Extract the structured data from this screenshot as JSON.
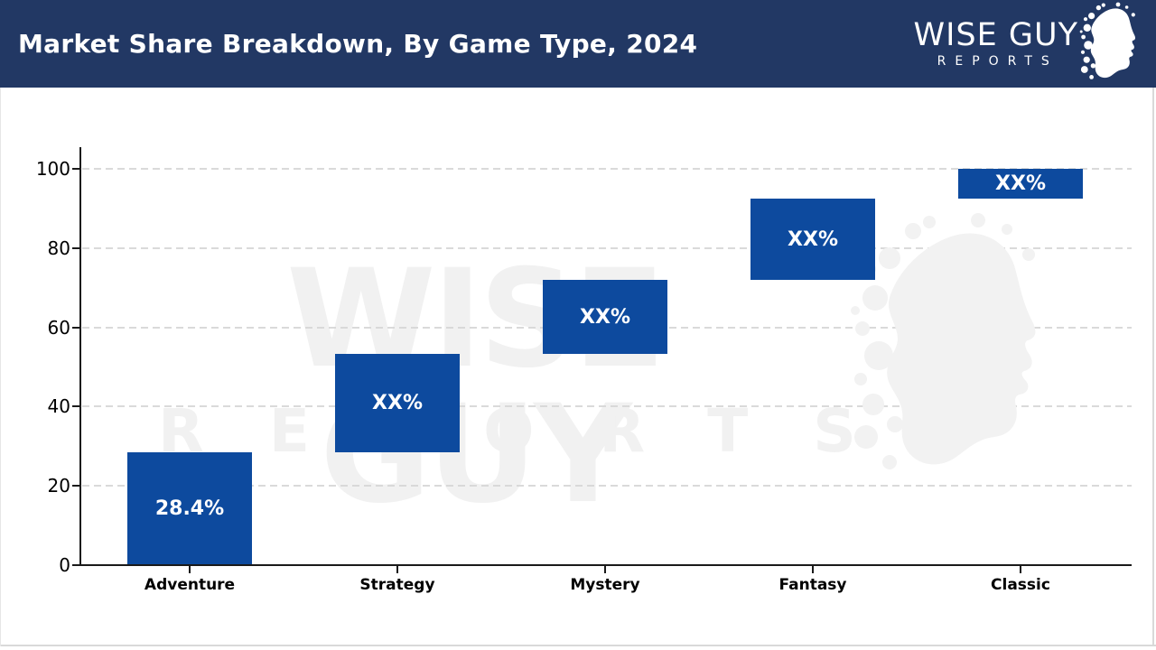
{
  "header": {
    "title": "Market Share Breakdown, By Game Type, 2024",
    "brand": {
      "name": "WISE GUY",
      "sub": "REPORTS"
    }
  },
  "watermark": {
    "line1": "WISE GUY",
    "line2": "REPORTS"
  },
  "chart_data": {
    "type": "bar",
    "subtype": "waterfall",
    "title": "Market Share Breakdown, By Game Type, 2024",
    "categories": [
      "Adventure",
      "Strategy",
      "Mystery",
      "Fantasy",
      "Classic"
    ],
    "segments": [
      {
        "category": "Adventure",
        "label": "28.4%",
        "start": 0,
        "end": 28.4
      },
      {
        "category": "Strategy",
        "label": "XX%",
        "start": 28.4,
        "end": 53.2
      },
      {
        "category": "Mystery",
        "label": "XX%",
        "start": 53.2,
        "end": 72.0
      },
      {
        "category": "Fantasy",
        "label": "XX%",
        "start": 72.0,
        "end": 92.4
      },
      {
        "category": "Classic",
        "label": "XX%",
        "start": 92.4,
        "end": 100.0
      }
    ],
    "yticks": [
      0,
      20,
      40,
      60,
      80,
      100
    ],
    "ylim": [
      0,
      105
    ],
    "xlabel": "",
    "ylabel": "",
    "grid": "dashed-horizontal",
    "legend": "none",
    "bar_color": "#0d4a9e",
    "bar_label_color": "#ffffff"
  },
  "colors": {
    "header_bg": "#223864",
    "bar": "#0d4a9e",
    "grid": "#d6d6d6",
    "watermark": "#f1f1f1",
    "axis": "#1a1a1a"
  }
}
